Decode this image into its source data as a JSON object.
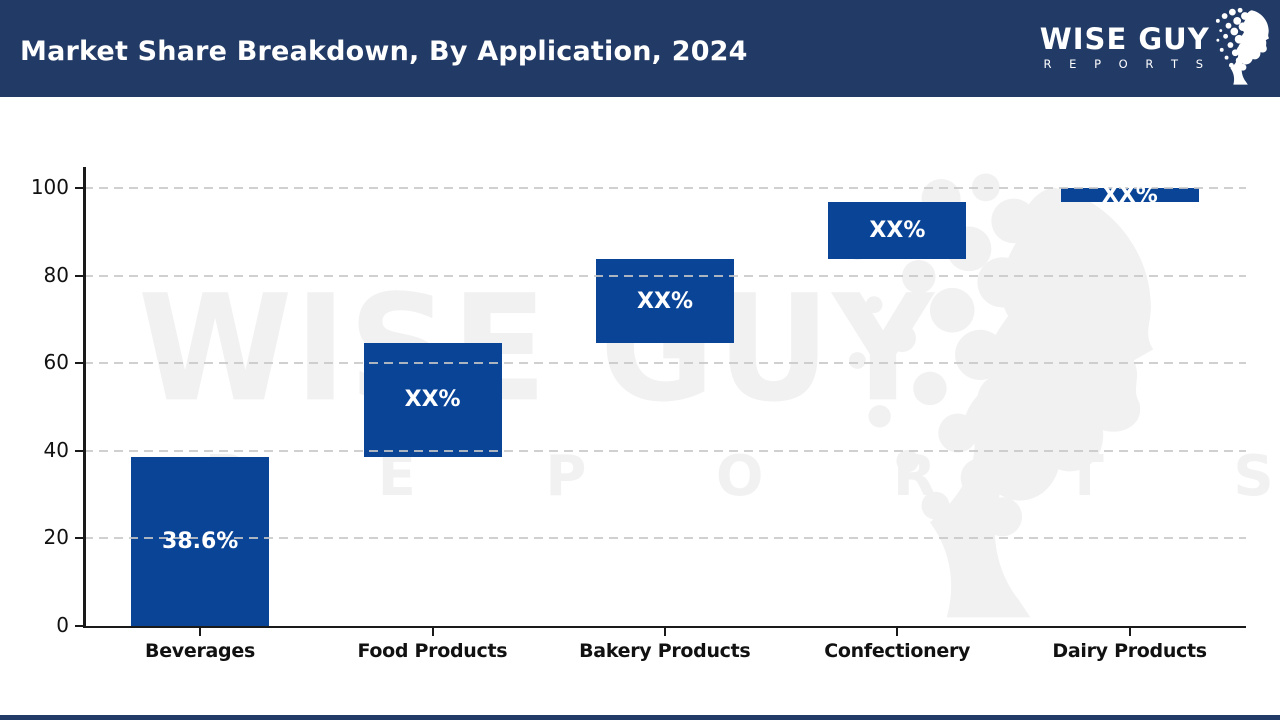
{
  "header": {
    "title": "Market Share Breakdown, By Application, 2024",
    "logo": {
      "line1": "WISE GUY",
      "line2": "R E P O R T S"
    }
  },
  "watermark": {
    "line1": "WISE GUY",
    "line2": "R E P O R T S"
  },
  "colors": {
    "header_bg": "#213a66",
    "bar": "#0a4496",
    "grid": "#c8c8c8",
    "axis": "#1a1a1a",
    "bar_label_text": "#ffffff",
    "watermark": "#f1f1f2"
  },
  "chart_data": {
    "type": "bar",
    "subtype": "waterfall",
    "title": "Market Share Breakdown, By Application, 2024",
    "xlabel": "",
    "ylabel": "",
    "ylim": [
      0,
      100
    ],
    "yticks": [
      0,
      20,
      40,
      60,
      80,
      100
    ],
    "grid": "dashed-horizontal",
    "legend": "none",
    "categories": [
      "Beverages",
      "Food Products",
      "Bakery Products",
      "Confectionery",
      "Dairy Products"
    ],
    "segments": [
      {
        "category": "Beverages",
        "start": 0,
        "end": 38.6,
        "value": 38.6,
        "label": "38.6%"
      },
      {
        "category": "Food Products",
        "start": 38.6,
        "end": 64.6,
        "value": 26.0,
        "label": "XX%"
      },
      {
        "category": "Bakery Products",
        "start": 64.6,
        "end": 83.8,
        "value": 19.2,
        "label": "XX%"
      },
      {
        "category": "Confectionery",
        "start": 83.8,
        "end": 96.8,
        "value": 13.0,
        "label": "XX%"
      },
      {
        "category": "Dairy Products",
        "start": 96.8,
        "end": 100,
        "value": 3.2,
        "label": "XX%"
      }
    ]
  }
}
